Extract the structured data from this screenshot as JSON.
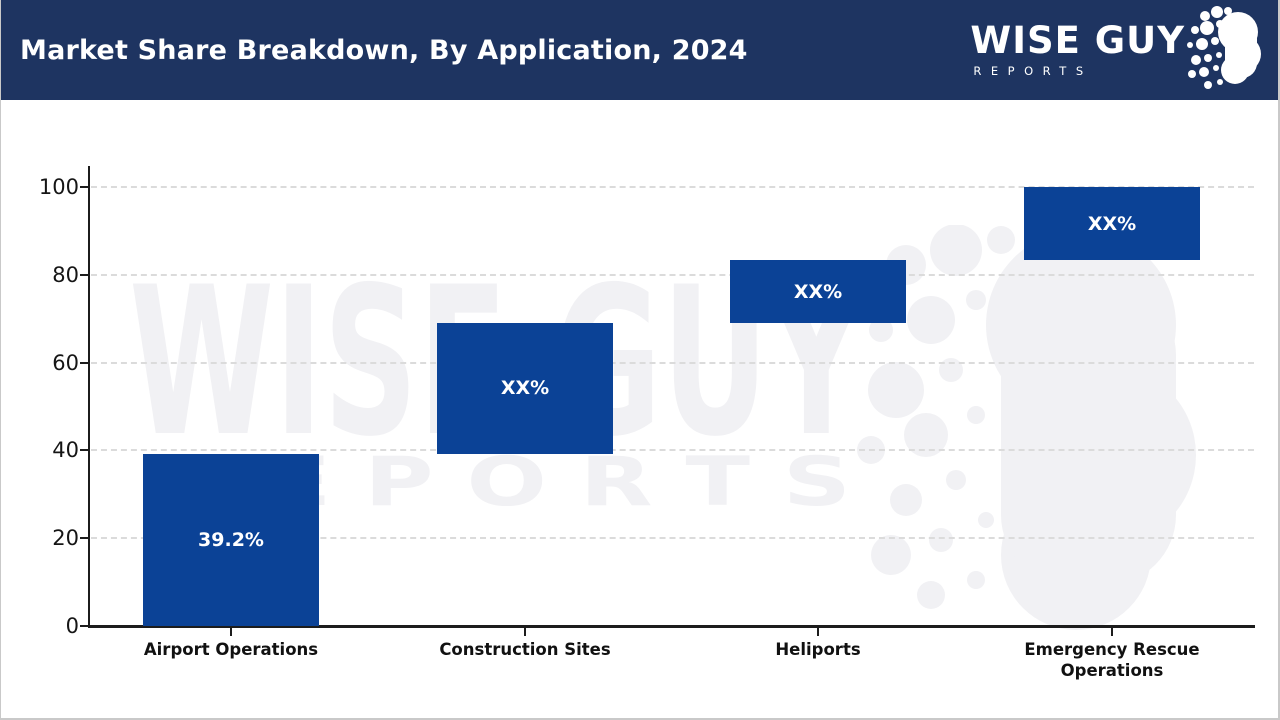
{
  "header": {
    "title": "Market Share Breakdown, By Application, 2024",
    "logo": {
      "line1": "WISE GUY",
      "line2": "REPORTS"
    }
  },
  "watermark": {
    "line1": "WISE GUY",
    "line2": "R E P O R T S"
  },
  "colors": {
    "header_bg": "#1e3461",
    "bar": "#0b4296",
    "grid": "#dbdbdb",
    "axis": "#1c1c1c",
    "watermark": "#f1f1f4"
  },
  "chart_data": {
    "type": "bar",
    "subtype": "floating-waterfall",
    "title": "Market Share Breakdown, By Application, 2024",
    "xlabel": "",
    "ylabel": "",
    "ylim": [
      0,
      105
    ],
    "yticks": [
      0,
      20,
      40,
      60,
      80,
      100
    ],
    "grid": "horizontal-dashed",
    "legend": "none",
    "bar_color": "#0b4296",
    "bar_label_color": "#ffffff",
    "categories": [
      "Airport Operations",
      "Construction Sites",
      "Heliports",
      "Emergency Rescue Operations"
    ],
    "bars": [
      {
        "category": "Airport Operations",
        "start": 0,
        "end": 39.2,
        "value": 39.2,
        "label": "39.2%"
      },
      {
        "category": "Construction Sites",
        "start": 39.2,
        "end": 69.0,
        "value": 29.8,
        "label": "XX%"
      },
      {
        "category": "Heliports",
        "start": 69.0,
        "end": 83.3,
        "value": 14.3,
        "label": "XX%"
      },
      {
        "category": "Emergency Rescue Operations",
        "start": 83.3,
        "end": 100,
        "value": 16.7,
        "label": "XX%"
      }
    ]
  }
}
